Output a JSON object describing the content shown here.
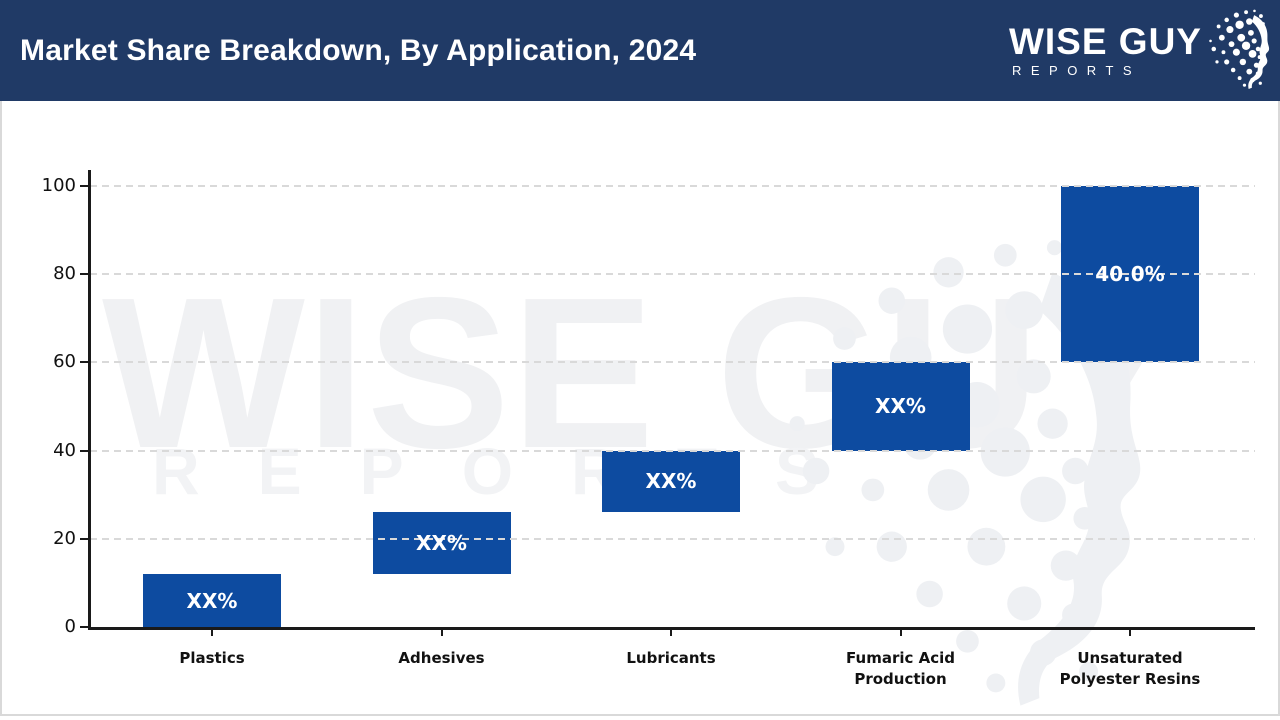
{
  "header": {
    "title": "Market Share Breakdown, By Application, 2024",
    "bg_color": "#203a66",
    "logo": {
      "line1": "WISE GUY",
      "line2": "REPORTS"
    }
  },
  "watermark": {
    "line1": "WISE GUY",
    "line2": "REPORTS"
  },
  "chart_data": {
    "type": "bar",
    "subtype": "waterfall",
    "title": "Market Share Breakdown, By Application, 2024",
    "categories": [
      "Plastics",
      "Adhesives",
      "Lubricants",
      "Fumaric Acid Production",
      "Unsaturated Polyester Resins"
    ],
    "category_lines": [
      [
        "Plastics"
      ],
      [
        "Adhesives"
      ],
      [
        "Lubricants"
      ],
      [
        "Fumaric Acid",
        "Production"
      ],
      [
        "Unsaturated",
        "Polyester Resins"
      ]
    ],
    "segments": [
      {
        "start": 0,
        "end": 12
      },
      {
        "start": 12,
        "end": 26
      },
      {
        "start": 26,
        "end": 40
      },
      {
        "start": 40,
        "end": 60
      },
      {
        "start": 60,
        "end": 100
      }
    ],
    "values": [
      12,
      14,
      14,
      20,
      40
    ],
    "bar_labels": [
      "XX%",
      "XX%",
      "XX%",
      "XX%",
      "40.0%"
    ],
    "ylim": [
      0,
      100
    ],
    "yticks": [
      0,
      20,
      40,
      60,
      80,
      100
    ],
    "grid": "horizontal-dashed",
    "legend": "none",
    "bar_color": "#0d4ba0",
    "axis_color": "#1a1a1a",
    "gridline_color": "#d9d9d9",
    "bar_label_color": "#ffffff"
  }
}
